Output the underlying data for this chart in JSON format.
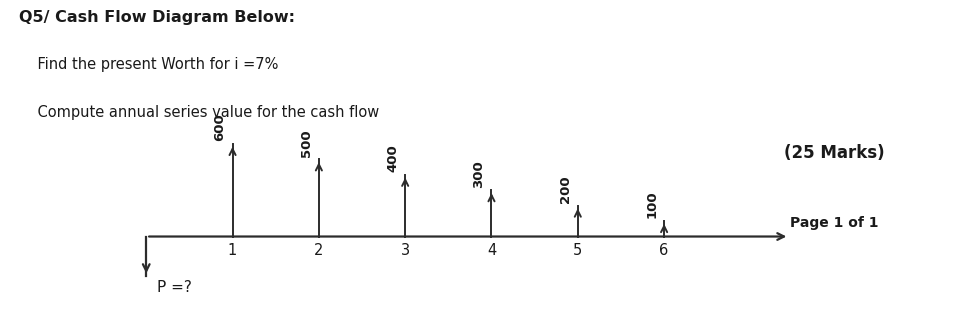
{
  "title_line1": "Q5/ Cash Flow Diagram Below:",
  "title_line2": "    Find the present Worth for i =7%",
  "title_line3": "    Compute annual series value for the cash flow",
  "periods": [
    1,
    2,
    3,
    4,
    5,
    6
  ],
  "cashflows": [
    600,
    500,
    400,
    300,
    200,
    100
  ],
  "p_label": "P =?",
  "marks_label": "(25 Marks)",
  "page_label": "Page 1 of 1",
  "background_color": "#ffffff",
  "arrow_color": "#2c2c2c",
  "text_color": "#1a1a1a",
  "title1_fontsize": 11.5,
  "title2_fontsize": 10.5,
  "title3_fontsize": 10.5,
  "label_fontsize": 9.5,
  "period_fontsize": 10.5,
  "marks_fontsize": 12,
  "page_fontsize": 10,
  "p_fontsize": 11
}
